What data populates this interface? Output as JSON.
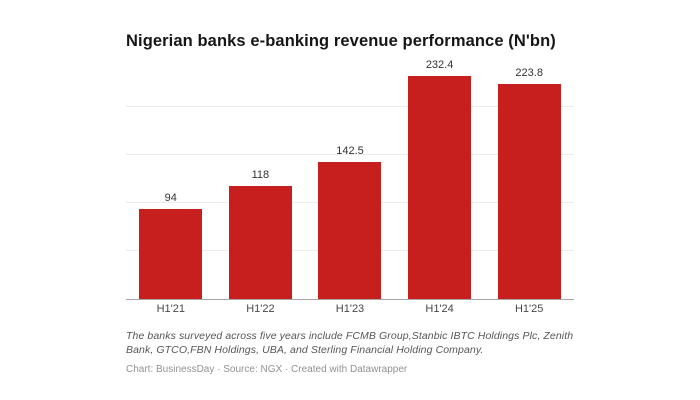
{
  "chart": {
    "title": "Nigerian banks e-banking revenue performance (N'bn)"
  },
  "chart_data": {
    "type": "bar",
    "title": "Nigerian banks e-banking revenue performance (N'bn)",
    "categories": [
      "H1'21",
      "H1'22",
      "H1'23",
      "H1'24",
      "H1'25"
    ],
    "values": [
      94,
      118,
      142.5,
      232.4,
      223.8
    ],
    "value_labels": [
      "94",
      "118",
      "142.5",
      "232.4",
      "223.8"
    ],
    "xlabel": "",
    "ylabel": "",
    "ylim": [
      0,
      250
    ],
    "gridlines": [
      50,
      100,
      150,
      200
    ],
    "grid": "horizontal-only",
    "legend": "none",
    "bar_color": "#c71f1d"
  },
  "colors": {
    "bar": "#c71f1d",
    "grid": "#ececec",
    "axis": "#a6a6a6",
    "title": "#161616",
    "value_label": "#333333",
    "tick_label": "#484848",
    "note": "#565656",
    "credit": "#929292",
    "background": "#ffffff"
  },
  "footer": {
    "note": "The banks surveyed across five years include FCMB Group,Stanbic IBTC Holdings Plc, Zenith Bank, GTCO,FBN Holdings, UBA, and Sterling Financial Holding Company.",
    "credit": "Chart: BusinessDay · Source: NGX · Created with Datawrapper"
  }
}
